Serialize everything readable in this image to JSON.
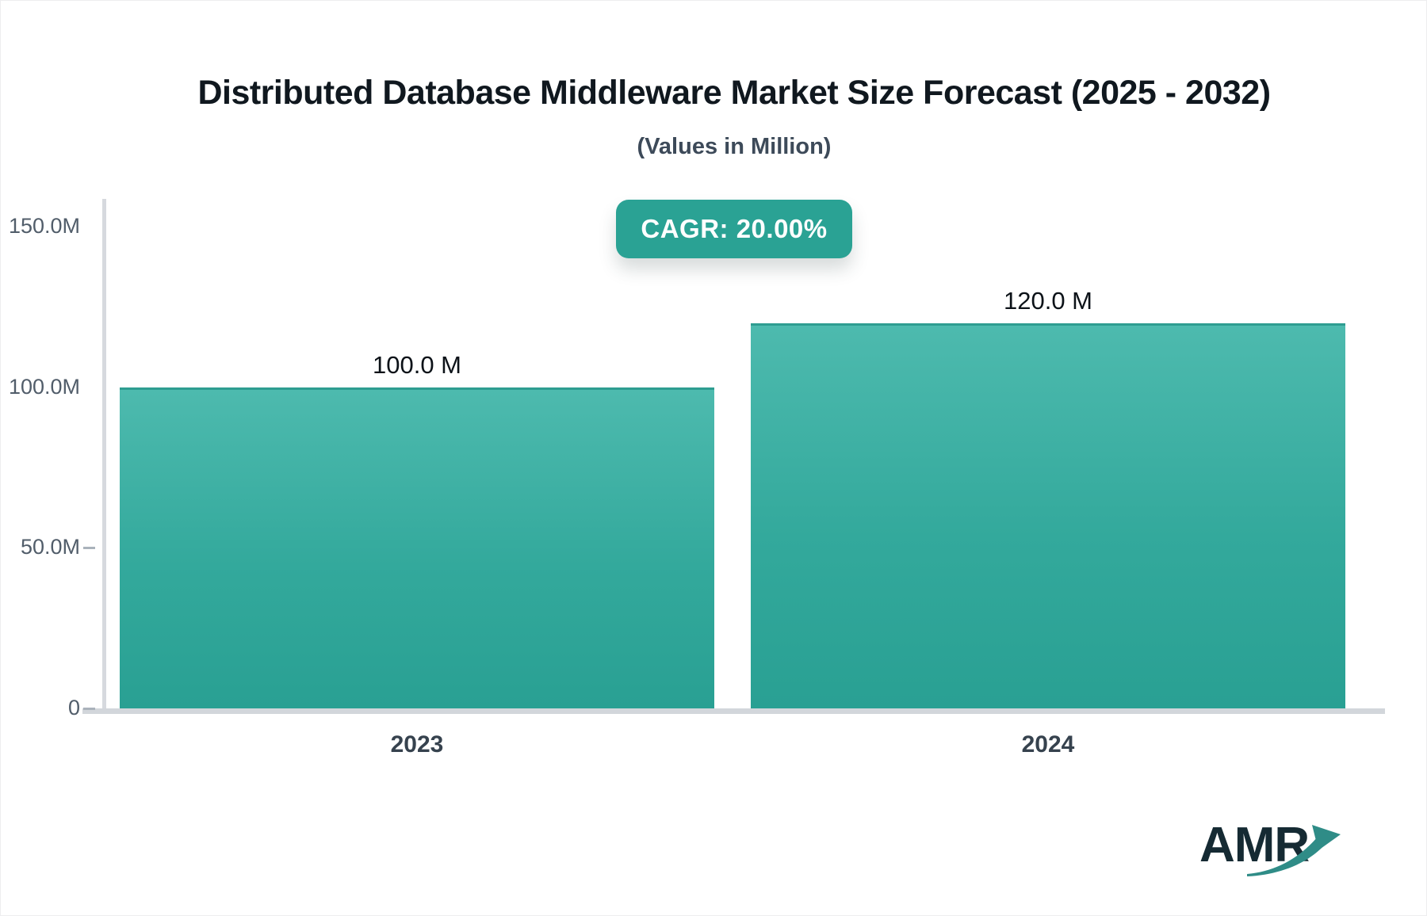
{
  "title": "Distributed Database Middleware Market Size Forecast (2025 - 2032)",
  "subtitle": "(Values in Million)",
  "badge": {
    "label": "CAGR: 20.00%"
  },
  "logo": {
    "text": "AMR"
  },
  "colors": {
    "badge_bg": "#2aa294",
    "bar_top": "#4dbaae",
    "bar_bottom": "#29a093",
    "axis_line": "#d6d9de",
    "title_text": "#10181f",
    "logo_navy": "#152a33",
    "logo_arrow_teal": "#2f8c87"
  },
  "chart_data": {
    "type": "bar",
    "title": "Distributed Database Middleware Market Size Forecast (2025 - 2032)",
    "subtitle": "(Values in Million)",
    "unit": "Million",
    "categories": [
      "2023",
      "2024"
    ],
    "values": [
      100.0,
      120.0
    ],
    "value_labels": [
      "100.0 M",
      "120.0 M"
    ],
    "cagr_pct": 20.0,
    "xlabel": "",
    "ylabel": "",
    "ylim": [
      0,
      150
    ],
    "grid": false,
    "legend": "none",
    "yticks": [
      {
        "label": "150.0M",
        "value": 150,
        "dash": false
      },
      {
        "label": "100.0M",
        "value": 100,
        "dash": false
      },
      {
        "label": "50.0M",
        "value": 50,
        "dash": true
      },
      {
        "label": "0",
        "value": 0,
        "dash": true
      }
    ]
  }
}
